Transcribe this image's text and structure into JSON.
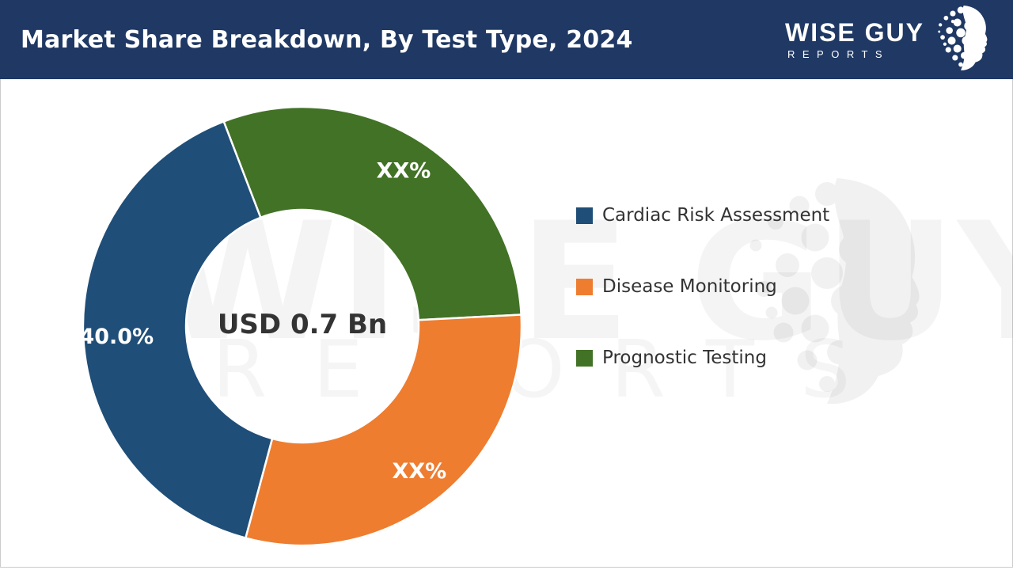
{
  "header": {
    "title": "Market Share Breakdown, By Test Type, 2024",
    "logo": {
      "name": "WISE GUY",
      "sub": "REPORTS"
    }
  },
  "watermark": {
    "line1": "WISE GUY",
    "line2": "REPORTS"
  },
  "chart_data": {
    "type": "pie",
    "subtype": "donut",
    "title": "Market Share Breakdown, By Test Type, 2024",
    "center_label": "USD 0.7 Bn",
    "start_angle_deg": -21,
    "inner_radius_ratio": 0.53,
    "legend_position": "right",
    "segments": [
      {
        "name": "Prognostic Testing",
        "value": 30,
        "display_label": "XX%",
        "color": "#427226"
      },
      {
        "name": "Disease Monitoring",
        "value": 30,
        "display_label": "XX%",
        "color": "#ee7d30"
      },
      {
        "name": "Cardiac Risk Assessment",
        "value": 40,
        "display_label": "40.0%",
        "color": "#1f4e78"
      }
    ],
    "legend": [
      {
        "label": "Cardiac Risk Assessment",
        "color": "#1f4e78"
      },
      {
        "label": "Disease Monitoring",
        "color": "#ee7d30"
      },
      {
        "label": "Prognostic Testing",
        "color": "#427226"
      }
    ]
  },
  "colors": {
    "header_bg": "#1f3864",
    "text_dark": "#333333",
    "border": "#cccccc"
  }
}
